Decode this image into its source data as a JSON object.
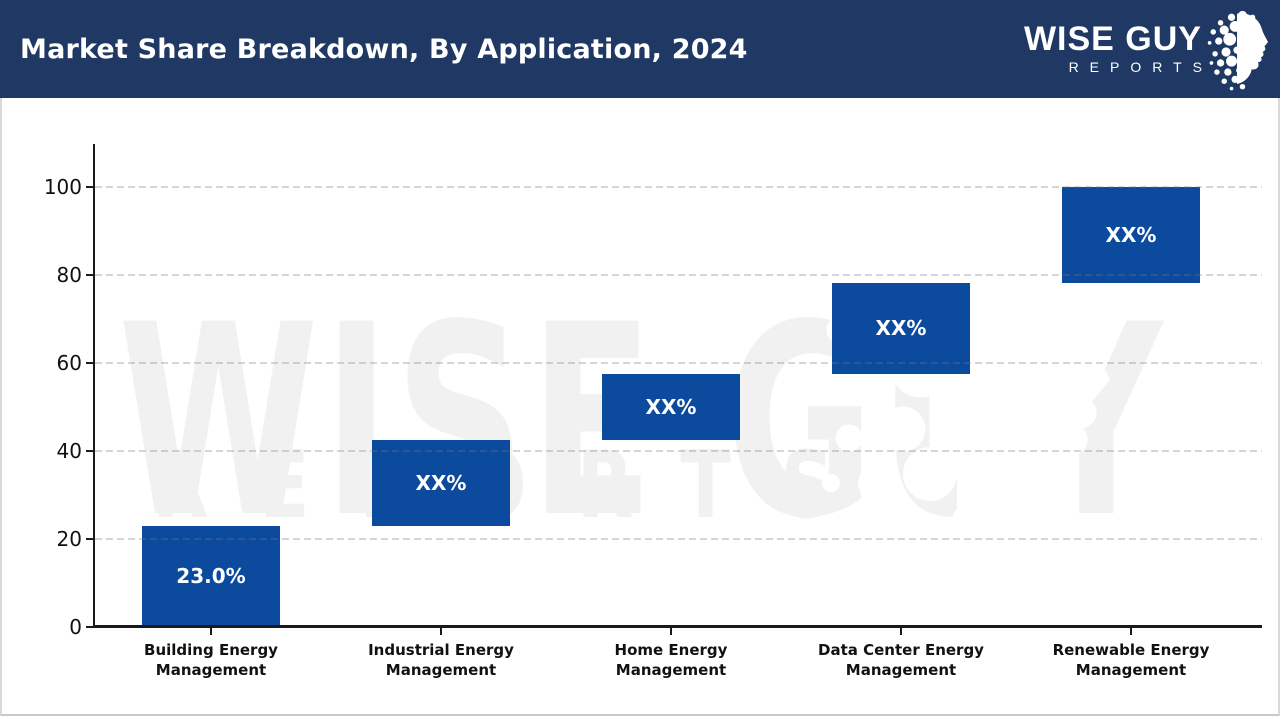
{
  "header": {
    "title": "Market Share Breakdown, By Application, 2024",
    "logo": {
      "line1": "WISE GUY",
      "line2": "REPORTS"
    }
  },
  "watermark": {
    "line1": "WISE GUY",
    "line2": "REPORTS"
  },
  "chart_data": {
    "type": "bar",
    "subtype": "waterfall",
    "title": "Market Share Breakdown, By Application, 2024",
    "categories": [
      "Building Energy Management",
      "Industrial Energy Management",
      "Home Energy Management",
      "Data Center Energy Management",
      "Renewable Energy Management"
    ],
    "category_lines": [
      [
        "Building Energy",
        "Management"
      ],
      [
        "Industrial Energy",
        "Management"
      ],
      [
        "Home Energy",
        "Management"
      ],
      [
        "Data Center Energy",
        "Management"
      ],
      [
        "Renewable Energy",
        "Management"
      ]
    ],
    "values": [
      23.0,
      19.4,
      15.2,
      20.5,
      21.9
    ],
    "cumulative_start": [
      0,
      23.0,
      42.4,
      57.6,
      78.1
    ],
    "bar_labels": [
      "23.0%",
      "XX%",
      "XX%",
      "XX%",
      "XX%"
    ],
    "xlabel": "",
    "ylabel": "",
    "yticks": [
      0,
      20,
      40,
      60,
      80,
      100
    ],
    "ylim": [
      0,
      110
    ],
    "grid": "dashed-horizontal",
    "legend": null
  },
  "colors": {
    "header_bg": "#1f3864",
    "bar": "#0c4a9e",
    "axis": "#1a1a1a",
    "grid_on_white": "#dedede",
    "watermark": "#f1f1f1",
    "bar_label_text": "#ffffff"
  }
}
